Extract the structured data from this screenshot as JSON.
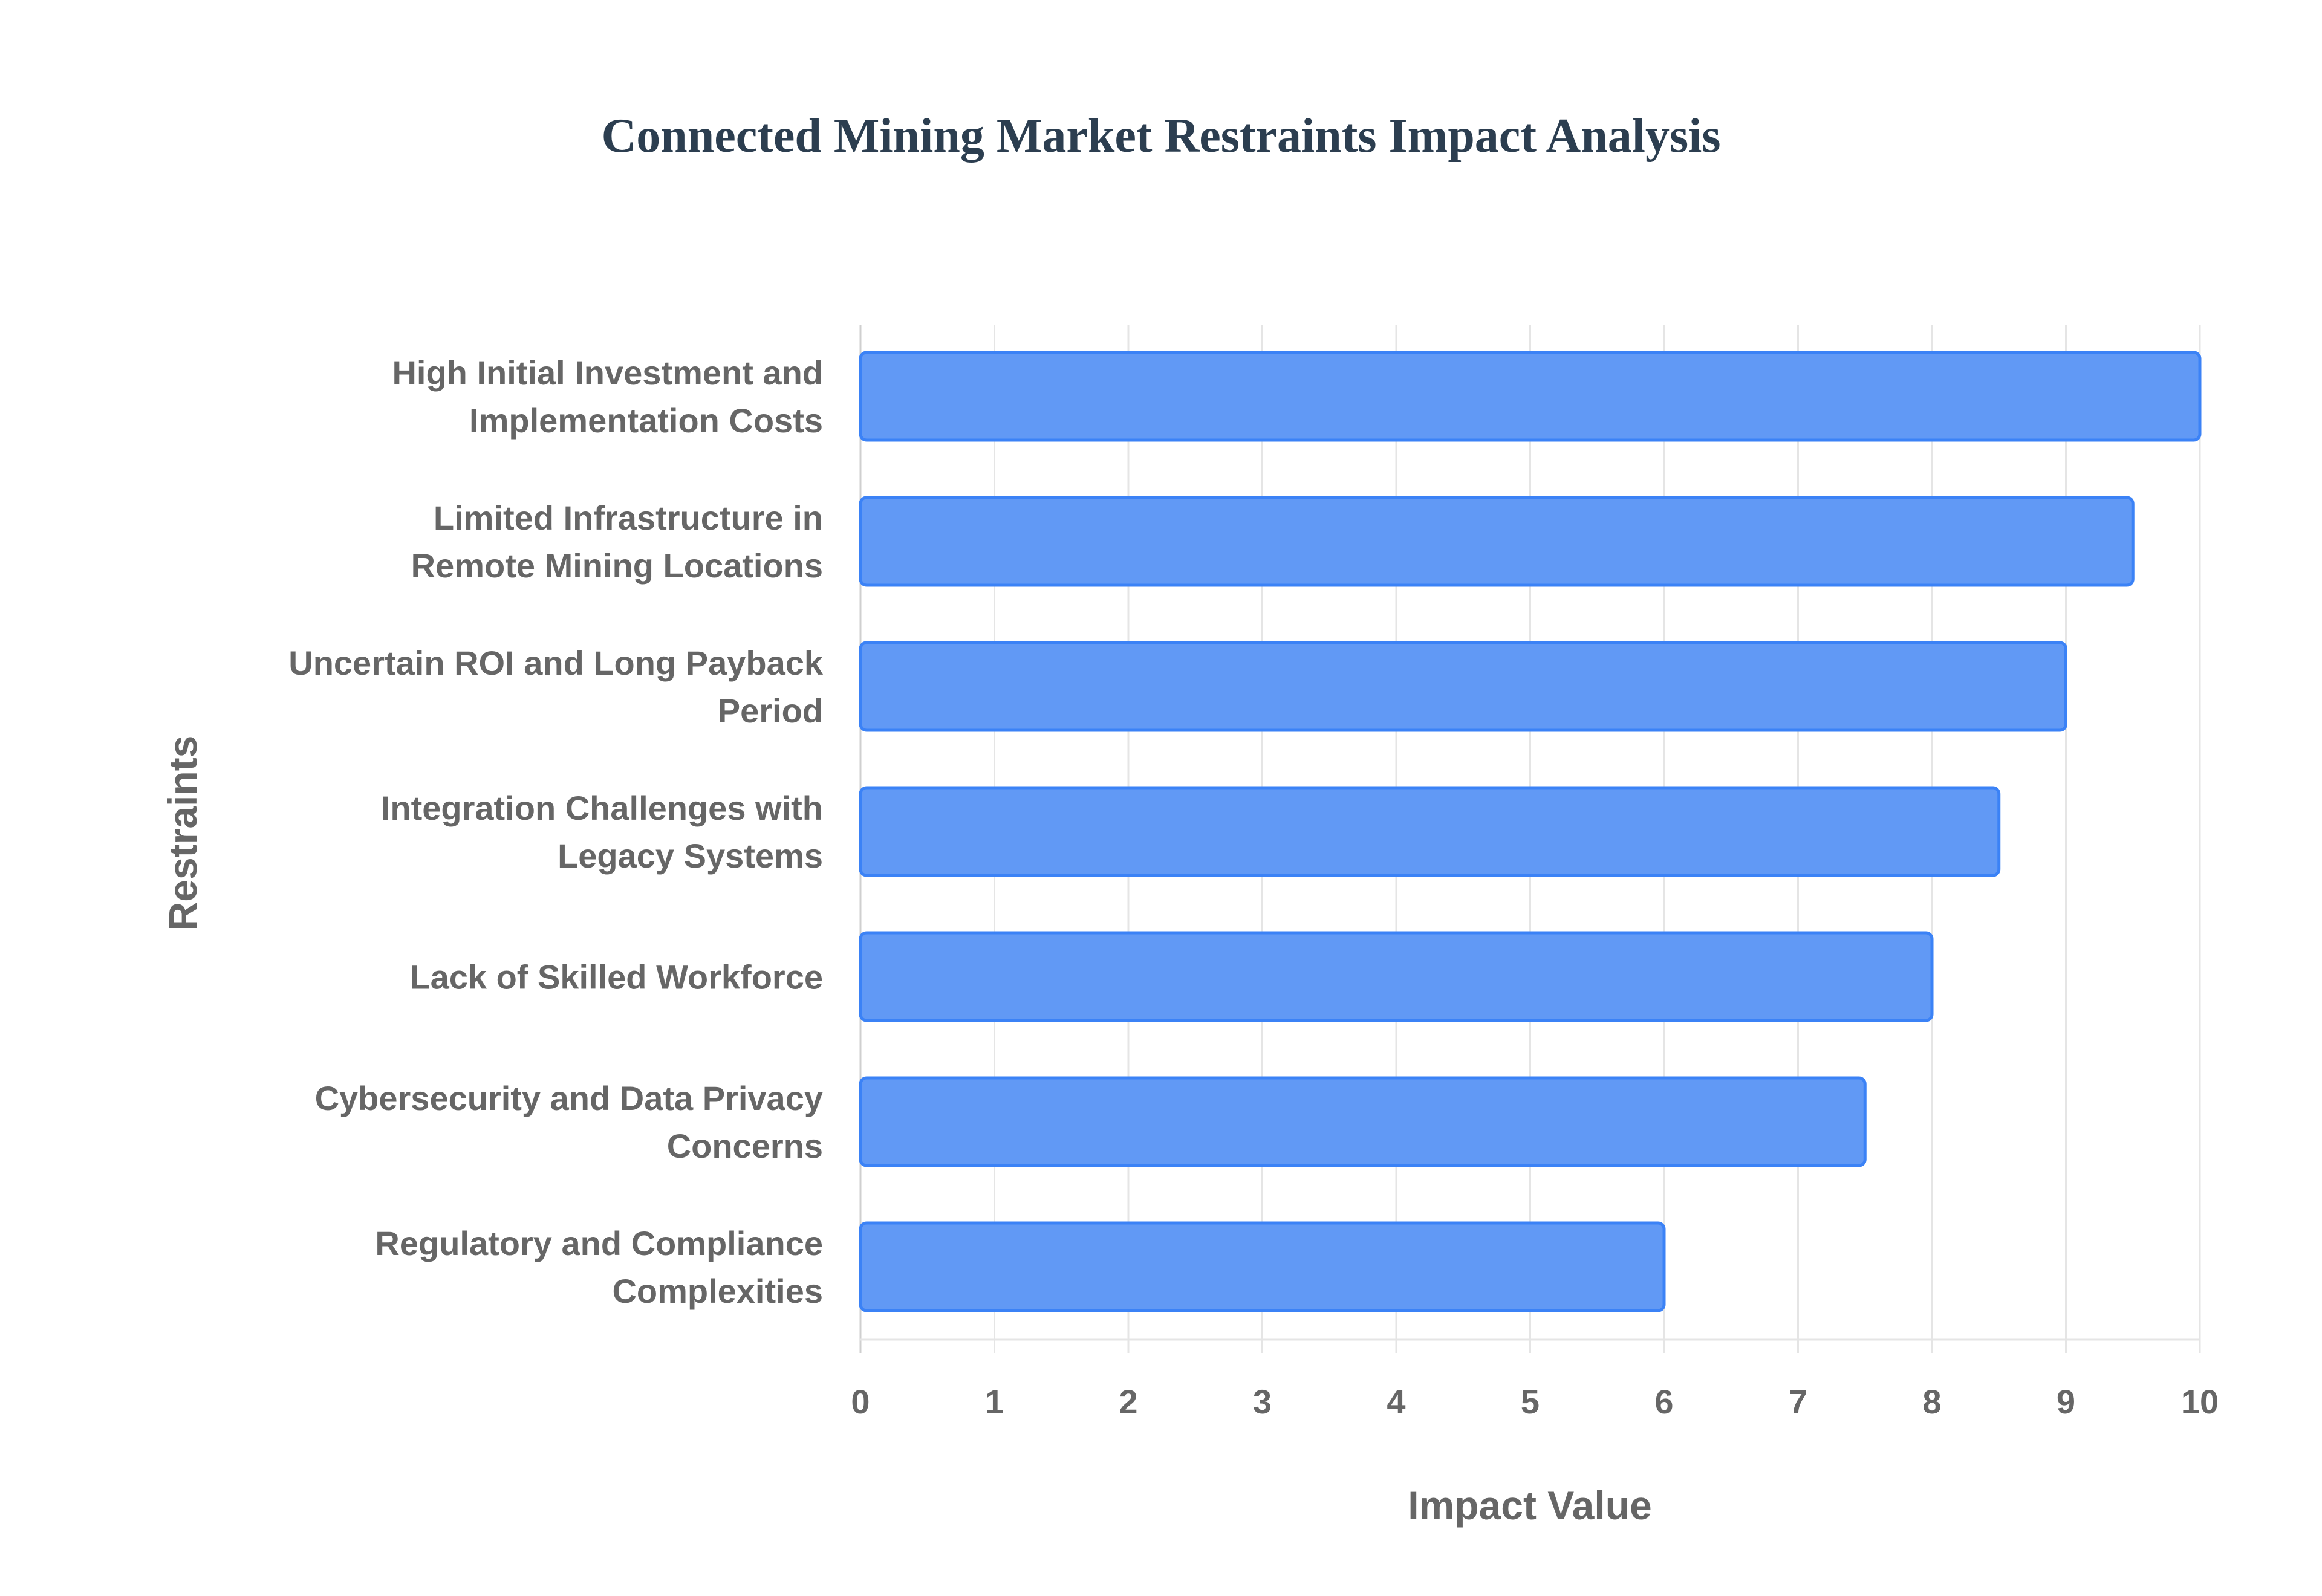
{
  "chart_data": {
    "type": "bar",
    "orientation": "horizontal",
    "title": "Connected Mining Market Restraints Impact Analysis",
    "xlabel": "Impact Value",
    "ylabel": "Restraints",
    "xlim": [
      0,
      10
    ],
    "xticks": [
      "0",
      "1",
      "2",
      "3",
      "4",
      "5",
      "6",
      "7",
      "8",
      "9",
      "10"
    ],
    "grid": true,
    "categories": [
      [
        "High Initial Investment and",
        "Implementation Costs"
      ],
      [
        "Limited Infrastructure in",
        "Remote Mining Locations"
      ],
      [
        "Uncertain ROI and Long Payback",
        "Period"
      ],
      [
        "Integration Challenges with",
        "Legacy Systems"
      ],
      [
        "Lack of Skilled Workforce"
      ],
      [
        "Cybersecurity and Data Privacy",
        "Concerns"
      ],
      [
        "Regulatory and Compliance",
        "Complexities"
      ]
    ],
    "values": [
      10,
      9.5,
      9,
      8.5,
      8,
      7.5,
      6
    ],
    "colors": {
      "bar_fill": "#6199f5",
      "bar_border": "#3b82f6",
      "grid": "#e5e5e5",
      "text": "#666666",
      "title": "#2c3e50"
    }
  }
}
